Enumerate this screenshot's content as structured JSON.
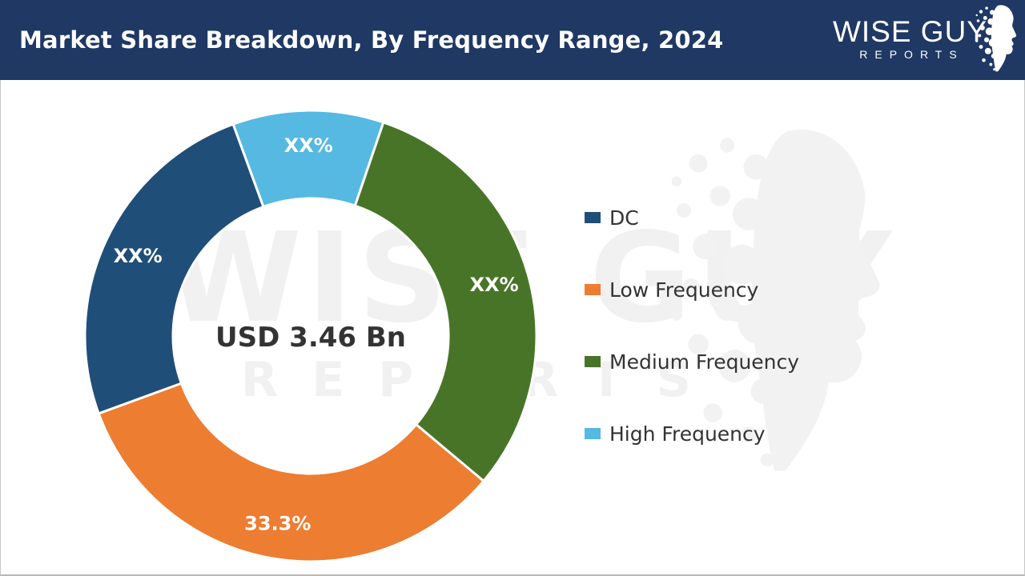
{
  "header": {
    "title": "Market Share Breakdown, By Frequency Range, 2024",
    "logo": {
      "line1": "WISE GUY",
      "line2": "REPORTS"
    }
  },
  "watermark": {
    "line1": "WISE GUY",
    "line2": "REPORTS"
  },
  "chart_data": {
    "type": "pie",
    "donut": true,
    "title": "Market Share Breakdown, By Frequency Range, 2024",
    "center_label": "USD 3.46 Bn",
    "start_angle_deg_clockwise_from_top": -20.1,
    "outer_radius_px": 282,
    "inner_radius_px": 172,
    "label_radius_px": 238,
    "segments": [
      {
        "name": "High Frequency",
        "display_label": "XX%",
        "value_pct_est": 10.8,
        "color": "#55b9e2"
      },
      {
        "name": "Medium Frequency",
        "display_label": "XX%",
        "value_pct_est": 30.9,
        "color": "#487428"
      },
      {
        "name": "Low Frequency",
        "display_label": "33.3%",
        "value_pct_est": 33.3,
        "color": "#ed7d31"
      },
      {
        "name": "DC",
        "display_label": "XX%",
        "value_pct_est": 25.0,
        "color": "#1f4e79"
      }
    ],
    "legend_position": "right"
  },
  "legend": {
    "items": [
      {
        "label": "DC",
        "color": "#1f4e79"
      },
      {
        "label": "Low Frequency",
        "color": "#ed7d31"
      },
      {
        "label": "Medium Frequency",
        "color": "#487428"
      },
      {
        "label": "High Frequency",
        "color": "#55b9e2"
      }
    ]
  }
}
